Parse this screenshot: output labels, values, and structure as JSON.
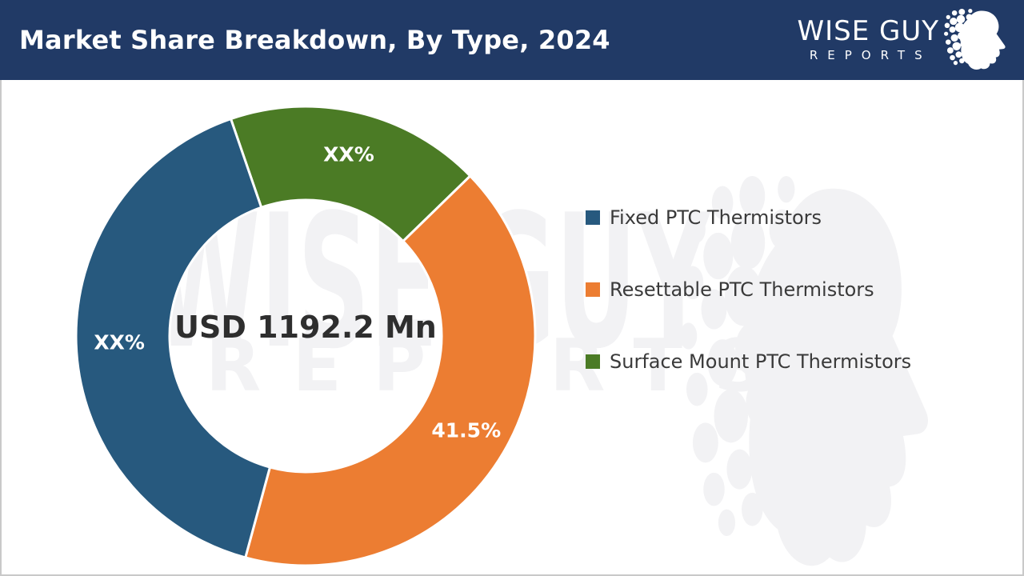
{
  "theme": {
    "header_bg": "#213A66",
    "header_text": "#FFFFFF",
    "content_bg": "#FFFFFF",
    "border": "#C9C9C9",
    "center_text": "#2E2E2E",
    "legend_text": "#3A3A3A",
    "slice_label_text": "#FFFFFF",
    "watermark": "#F2F2F4"
  },
  "header": {
    "title": "Market Share Breakdown, By Type, 2024",
    "logo": {
      "line1": "WISE GUY",
      "line2": "REPORTS"
    }
  },
  "watermark": {
    "line1": "WISE GUY",
    "line2": "REPORTS"
  },
  "chart_data": {
    "type": "pie",
    "title": "Market Share Breakdown, By Type, 2024",
    "donut": true,
    "center_label": "USD 1192.2 Mn",
    "start_angle_deg": -19,
    "legend_position": "right",
    "geometry": {
      "outer_radius": 287,
      "inner_radius": 170,
      "label_radius": 233
    },
    "slices": [
      {
        "name": "Surface Mount PTC Thermistors",
        "value_pct": 18.0,
        "label": "XX%",
        "color": "#4B7B25"
      },
      {
        "name": "Resettable PTC Thermistors",
        "value_pct": 41.5,
        "label": "41.5%",
        "color": "#EC7D32"
      },
      {
        "name": "Fixed PTC Thermistors",
        "value_pct": 40.5,
        "label": "XX%",
        "color": "#27597E"
      }
    ],
    "legend": [
      {
        "label": "Fixed PTC Thermistors",
        "color": "#27597E"
      },
      {
        "label": "Resettable PTC Thermistors",
        "color": "#EC7D32"
      },
      {
        "label": "Surface Mount PTC Thermistors",
        "color": "#4B7B25"
      }
    ]
  }
}
